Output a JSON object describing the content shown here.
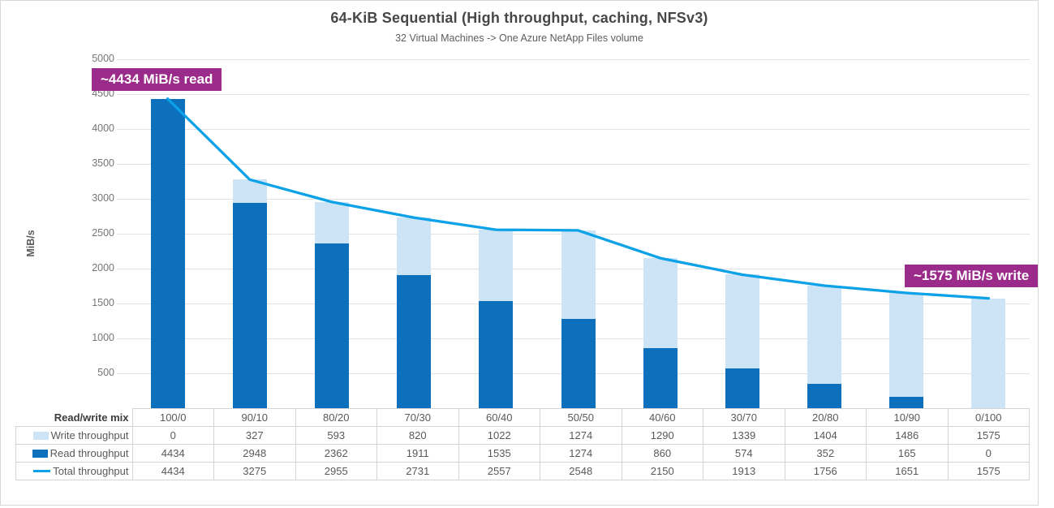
{
  "header": {
    "title": "64-KiB Sequential (High throughput, caching, NFSv3)",
    "subtitle": "32 Virtual Machines -> One Azure NetApp Files volume"
  },
  "annotations": {
    "read_callout": "~4434 MiB/s read",
    "write_callout": "~1575 MiB/s write"
  },
  "colors": {
    "read_bar": "#0c70bd",
    "write_bar": "#cce4f6",
    "total_line": "#0da2e8",
    "callout_bg": "#9a2b8a",
    "gridline": "#e2e2e2"
  },
  "table": {
    "corner_label": "Read/write mix"
  },
  "chart_data": {
    "type": "bar",
    "subtype": "stacked-bar-with-line",
    "title": "64-KiB Sequential (High throughput, caching, NFSv3)",
    "subtitle": "32 Virtual Machines -> One Azure NetApp Files volume",
    "xlabel": "Read/write mix",
    "ylabel": "MiB/s",
    "ylim": [
      0,
      5000
    ],
    "ytick_interval": 500,
    "grid": true,
    "legend_position": "table-left",
    "categories": [
      "100/0",
      "90/10",
      "80/20",
      "70/30",
      "60/40",
      "50/50",
      "40/60",
      "30/70",
      "20/80",
      "10/90",
      "0/100"
    ],
    "series": [
      {
        "name": "Write throughput",
        "type": "bar",
        "stack": "top",
        "color": "#cce4f6",
        "values": [
          0,
          327,
          593,
          820,
          1022,
          1274,
          1290,
          1339,
          1404,
          1486,
          1575
        ]
      },
      {
        "name": "Read throughput",
        "type": "bar",
        "stack": "bottom",
        "color": "#0c70bd",
        "values": [
          4434,
          2948,
          2362,
          1911,
          1535,
          1274,
          860,
          574,
          352,
          165,
          0
        ]
      },
      {
        "name": "Total throughput",
        "type": "line",
        "color": "#0da2e8",
        "values": [
          4434,
          3275,
          2955,
          2731,
          2557,
          2548,
          2150,
          1913,
          1756,
          1651,
          1575
        ]
      }
    ]
  }
}
